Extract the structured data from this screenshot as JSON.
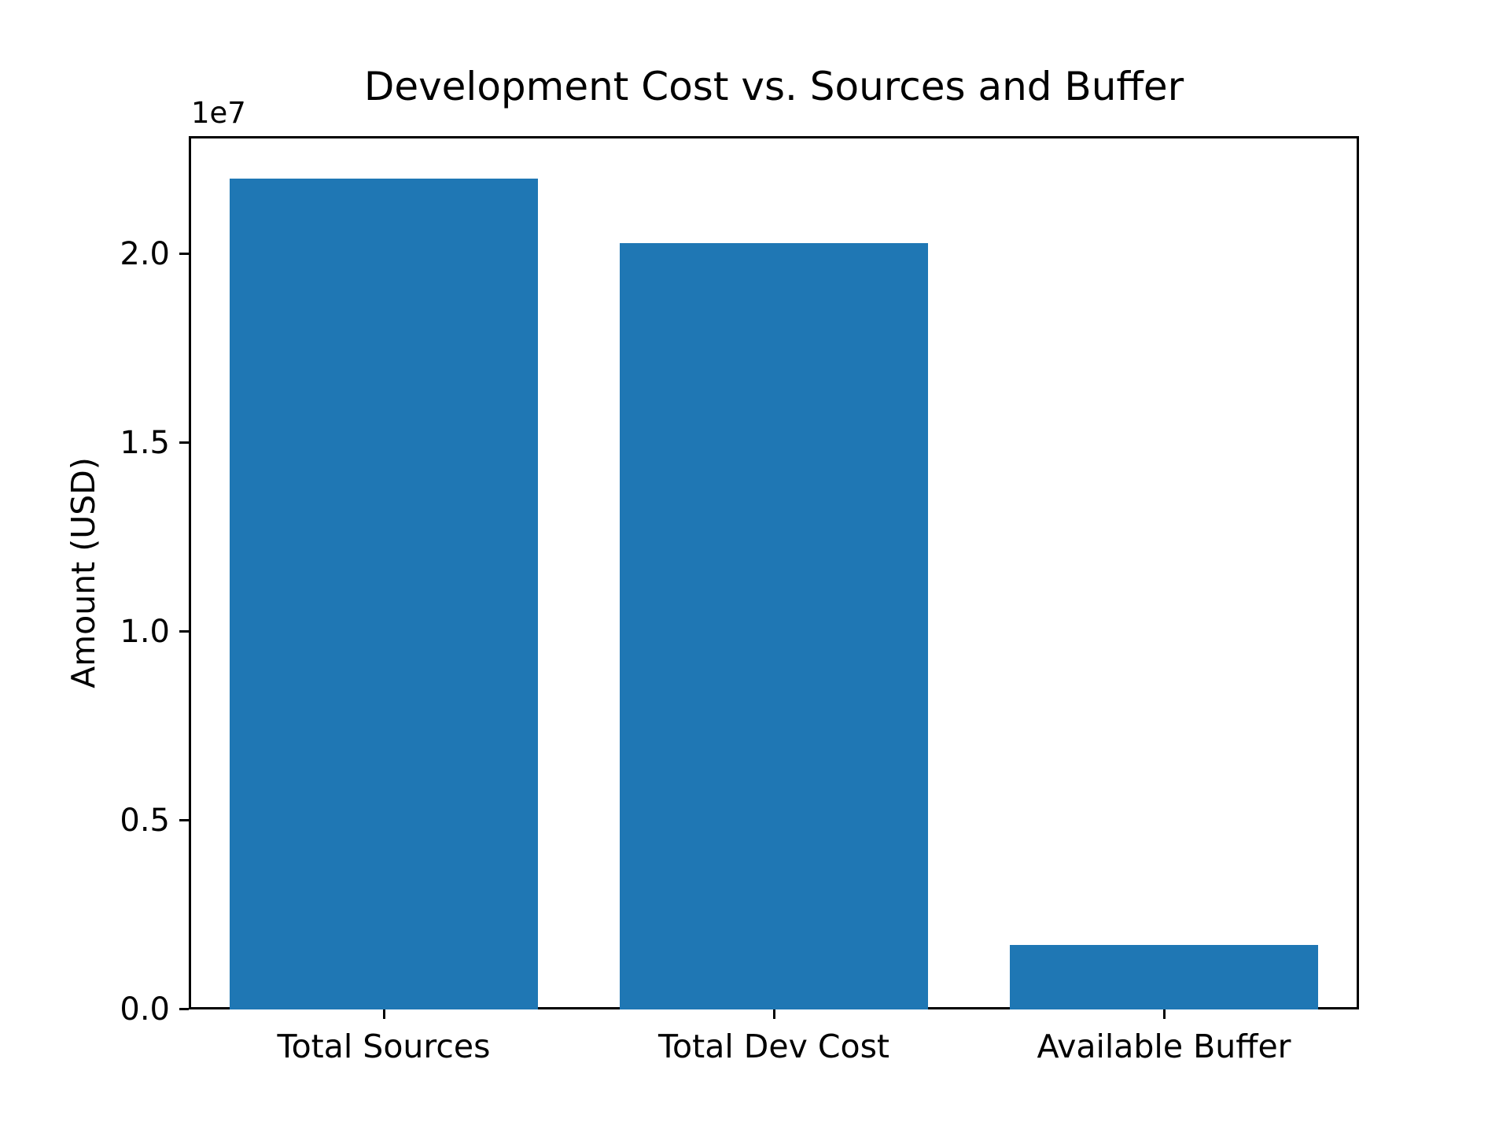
{
  "chart_data": {
    "type": "bar",
    "title": "Development Cost vs. Sources and Buffer",
    "xlabel": "",
    "ylabel": "Amount (USD)",
    "axis_offset_label": "1e7",
    "categories": [
      "Total Sources",
      "Total Dev Cost",
      "Available Buffer"
    ],
    "values": [
      22000000,
      20300000,
      1700000
    ],
    "ylim": [
      0,
      23125000
    ],
    "yticks": {
      "values": [
        0,
        5000000,
        10000000,
        15000000,
        20000000
      ],
      "labels": [
        "0.0",
        "0.5",
        "1.0",
        "1.5",
        "2.0"
      ]
    },
    "bar_color": "#1f77b4",
    "bar_width_fraction": 0.79,
    "grid": false,
    "legend_position": "none",
    "spine_color": "#000000",
    "background_color": "#ffffff"
  }
}
